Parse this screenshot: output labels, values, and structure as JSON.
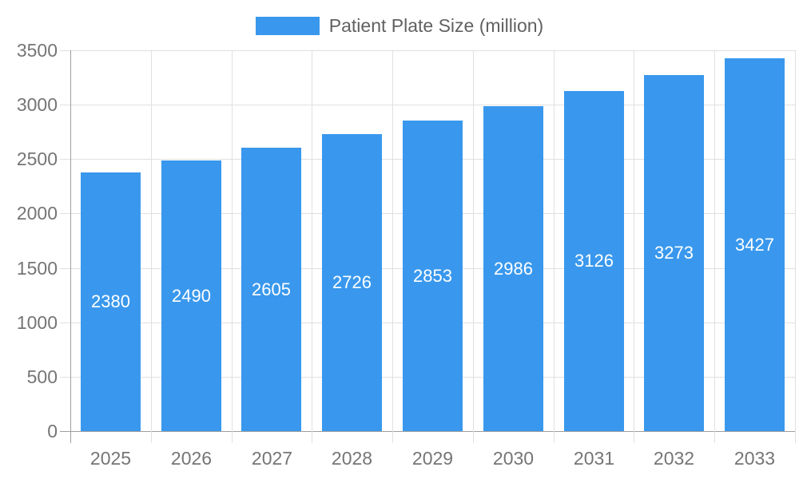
{
  "legend": {
    "label": "Patient Plate Size (million)",
    "swatch_color": "#3998ED"
  },
  "chart_data": {
    "type": "bar",
    "title": "",
    "xlabel": "",
    "ylabel": "",
    "series_name": "Patient Plate Size (million)",
    "categories": [
      "2025",
      "2026",
      "2027",
      "2028",
      "2029",
      "2030",
      "2031",
      "2032",
      "2033"
    ],
    "values": [
      2380,
      2490,
      2605,
      2726,
      2853,
      2986,
      3126,
      3273,
      3427
    ],
    "value_labels": [
      "2380",
      "2490",
      "2605",
      "2726",
      "2853",
      "2986",
      "3126",
      "3273",
      "3427"
    ],
    "ylim": [
      0,
      3500
    ],
    "yticks": [
      0,
      500,
      1000,
      1500,
      2000,
      2500,
      3000,
      3500
    ],
    "ytick_labels": [
      "0",
      "500",
      "1000",
      "1500",
      "2000",
      "2500",
      "3000",
      "3500"
    ],
    "grid": true,
    "legend_position": "top",
    "colors": {
      "bar": "#3998ED",
      "value_text": "#ffffff",
      "grid": "#E0E0E0",
      "axis": "#9E9E9E",
      "tick_text": "#757575",
      "legend_text": "#616161",
      "background": "#ffffff"
    }
  }
}
